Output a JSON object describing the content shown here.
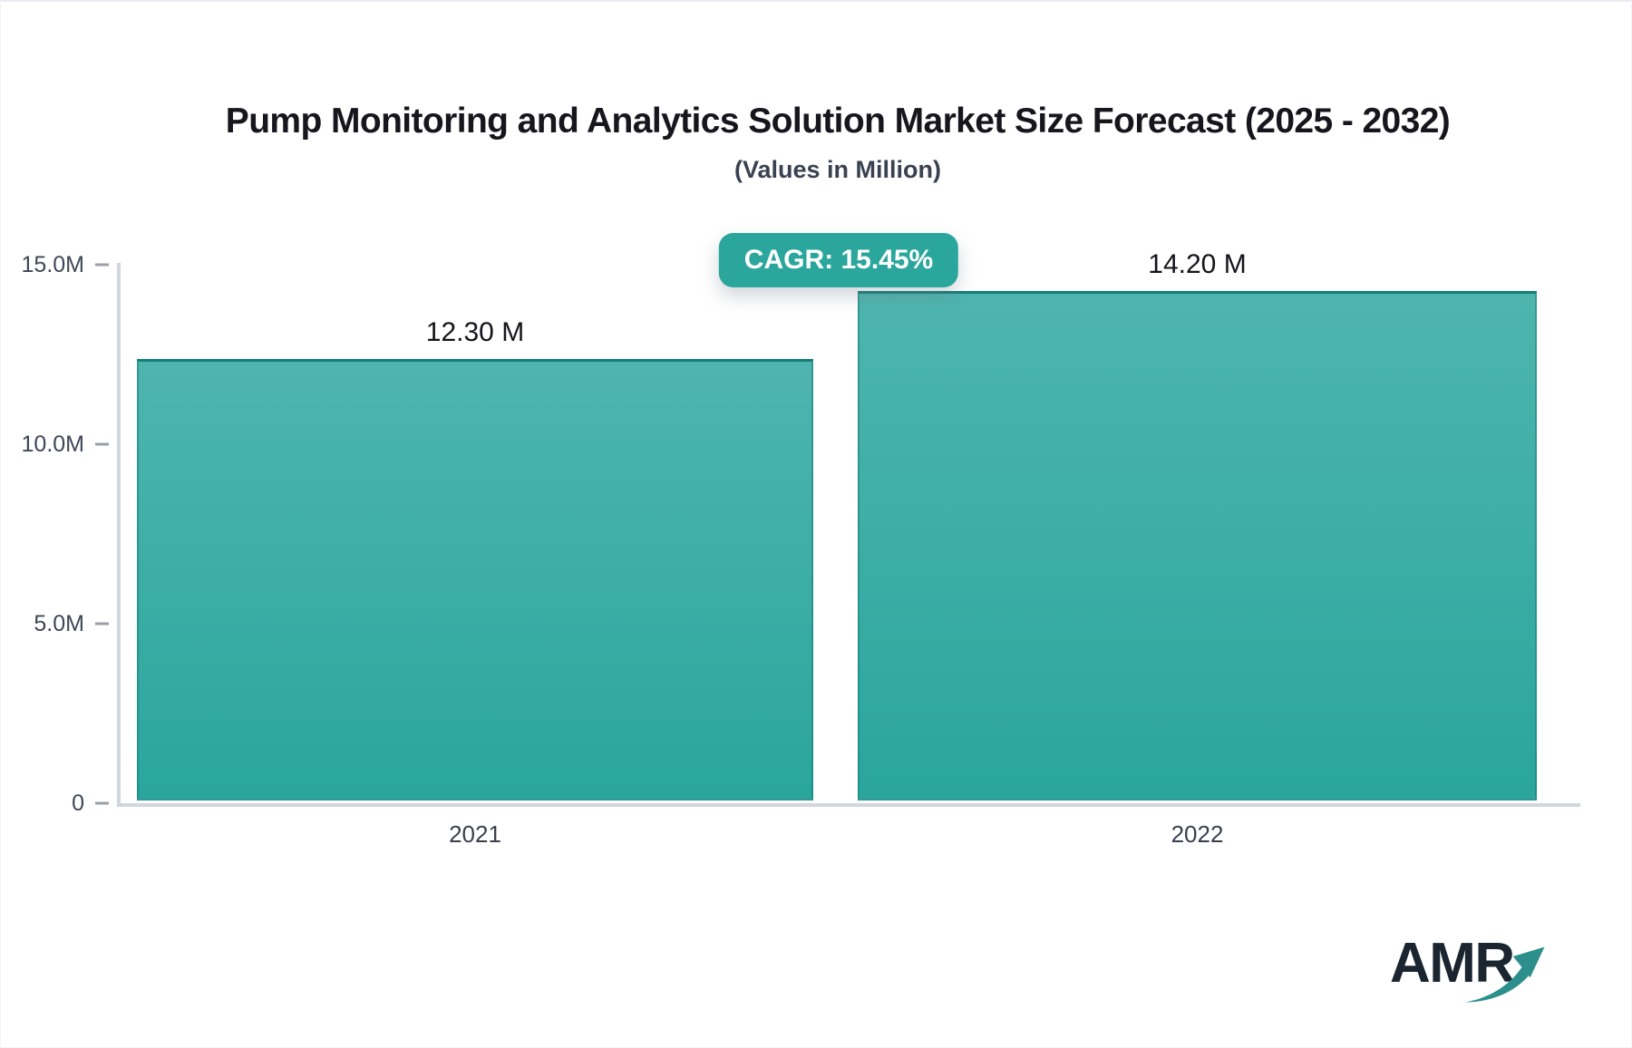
{
  "header": {
    "title": "Pump Monitoring and Analytics Solution Market Size Forecast (2025 - 2032)",
    "subtitle": "(Values in Million)"
  },
  "cagr_badge": {
    "label": "CAGR: 15.45%",
    "background_color": "#2aa69d",
    "text_color": "#ffffff"
  },
  "chart_data": {
    "type": "bar",
    "title": "Pump Monitoring and Analytics Solution Market Size Forecast (2025 - 2032)",
    "subtitle": "(Values in Million)",
    "categories": [
      "2021",
      "2022"
    ],
    "values": [
      12.3,
      14.2
    ],
    "value_labels": [
      "12.30 M",
      "14.20 M"
    ],
    "xlabel": "",
    "ylabel": "",
    "ylim": [
      0,
      15
    ],
    "yticks": [
      {
        "value": 0,
        "label": "0"
      },
      {
        "value": 5,
        "label": "5.0M"
      },
      {
        "value": 10,
        "label": "10.0M"
      },
      {
        "value": 15,
        "label": "15.0M"
      }
    ],
    "grid": false,
    "legend": false,
    "bar_color_top": "#4eb5ae",
    "bar_color_bottom": "#2aa69d",
    "axis_line_color": "#d2d6dd"
  },
  "logo": {
    "text": "AMR",
    "arrow_icon": "growth-arrow-icon",
    "arrow_color": "#2d8f8b"
  }
}
